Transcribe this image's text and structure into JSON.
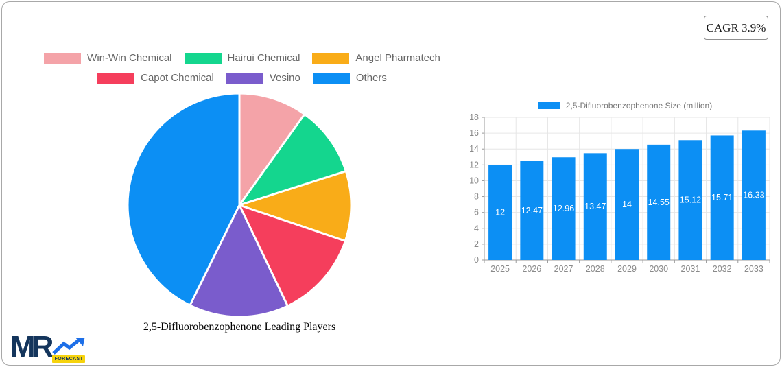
{
  "cagr_badge": {
    "label": "CAGR 3.9%"
  },
  "logo": {
    "text": "MR",
    "badge": "FORECAST",
    "navy": "#14355C",
    "blue": "#1D6FE8",
    "yellow": "#F6D30D"
  },
  "chart_data": [
    {
      "type": "pie",
      "title": "2,5-Difluorobenzophenone Leading Players",
      "labels": [
        "Win-Win Chemical",
        "Hairui Chemical",
        "Angel Pharmatech",
        "Capot Chemical",
        "Vesino",
        "Others"
      ],
      "values_percent": [
        9.9,
        10.2,
        10.1,
        12.7,
        14.4,
        42.7
      ],
      "colors": [
        "#F4A3A8",
        "#14D68E",
        "#F9AC18",
        "#F53E5C",
        "#7A5CCC",
        "#0C8FF4"
      ],
      "start_angle_deg": 0,
      "direction": "clockwise",
      "legend_position": "top",
      "legend_rows": 2
    },
    {
      "type": "bar",
      "legend": "2,5-Difluorobenzophenone Size (million)",
      "categories": [
        "2025",
        "2026",
        "2027",
        "2028",
        "2029",
        "2030",
        "2031",
        "2032",
        "2033"
      ],
      "values": [
        12,
        12.47,
        12.96,
        13.47,
        14,
        14.55,
        15.12,
        15.71,
        16.33
      ],
      "values_display": [
        "12",
        "12.47",
        "12.96",
        "13.47",
        "14",
        "14.55",
        "15.12",
        "15.71",
        "16.33"
      ],
      "ylim": [
        0,
        18
      ],
      "ytick_step": 2,
      "bar_color": "#0C8FF4",
      "grid": true,
      "grid_color": "#E6E6E6",
      "axis_color": "#999999",
      "tick_label_color": "#8A8A8A",
      "value_label_color": "#FFFFFF",
      "legend_position": "top"
    }
  ]
}
